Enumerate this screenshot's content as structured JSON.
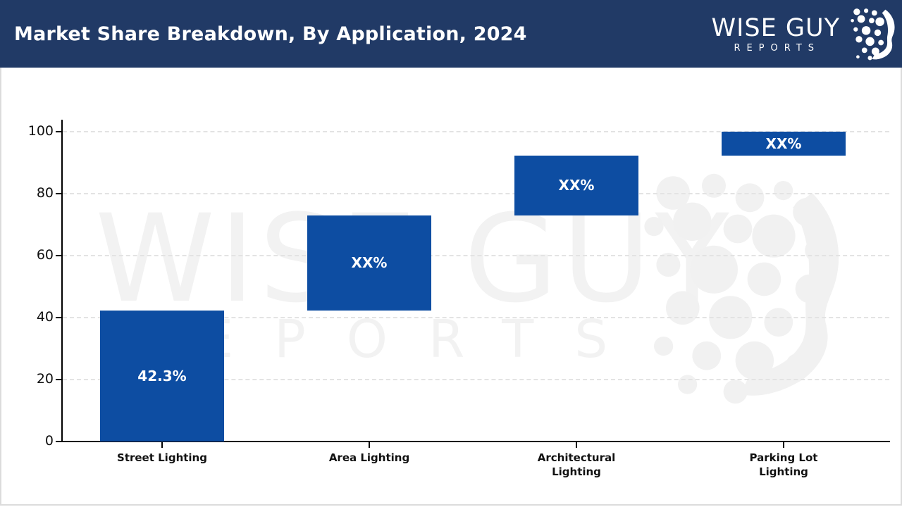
{
  "header": {
    "title": "Market Share Breakdown, By Application, 2024",
    "logo": {
      "line1": "WISE GUY",
      "line2": "REPORTS"
    }
  },
  "watermark": {
    "line1": "WISE GUY",
    "line2": "REPORTS"
  },
  "colors": {
    "header_bg": "#213a66",
    "bar": "#0d4da2",
    "bar_label": "#ffffff",
    "gridline": "#e3e3e3",
    "axis": "#000000",
    "watermark": "#f2f2f2"
  },
  "chart_data": {
    "type": "bar",
    "subtype": "waterfall",
    "title": "Market Share Breakdown, By Application, 2024",
    "categories": [
      "Street Lighting",
      "Area Lighting",
      "Architectural\nLighting",
      "Parking Lot\nLighting"
    ],
    "segments": [
      {
        "category": "Street Lighting",
        "start": 0,
        "end": 42.3,
        "label": "42.3%"
      },
      {
        "category": "Area Lighting",
        "start": 42.3,
        "end": 73.0,
        "label": "XX%"
      },
      {
        "category": "Architectural Lighting",
        "start": 73.0,
        "end": 92.3,
        "label": "XX%"
      },
      {
        "category": "Parking Lot Lighting",
        "start": 92.3,
        "end": 100.0,
        "label": "XX%"
      }
    ],
    "yticks": [
      0,
      20,
      40,
      60,
      80,
      100
    ],
    "ylim": [
      0,
      104
    ],
    "xlabel": "",
    "ylabel": "",
    "grid": true,
    "legend": "none",
    "bar_color": "#0d4da2",
    "label_color": "#ffffff"
  }
}
